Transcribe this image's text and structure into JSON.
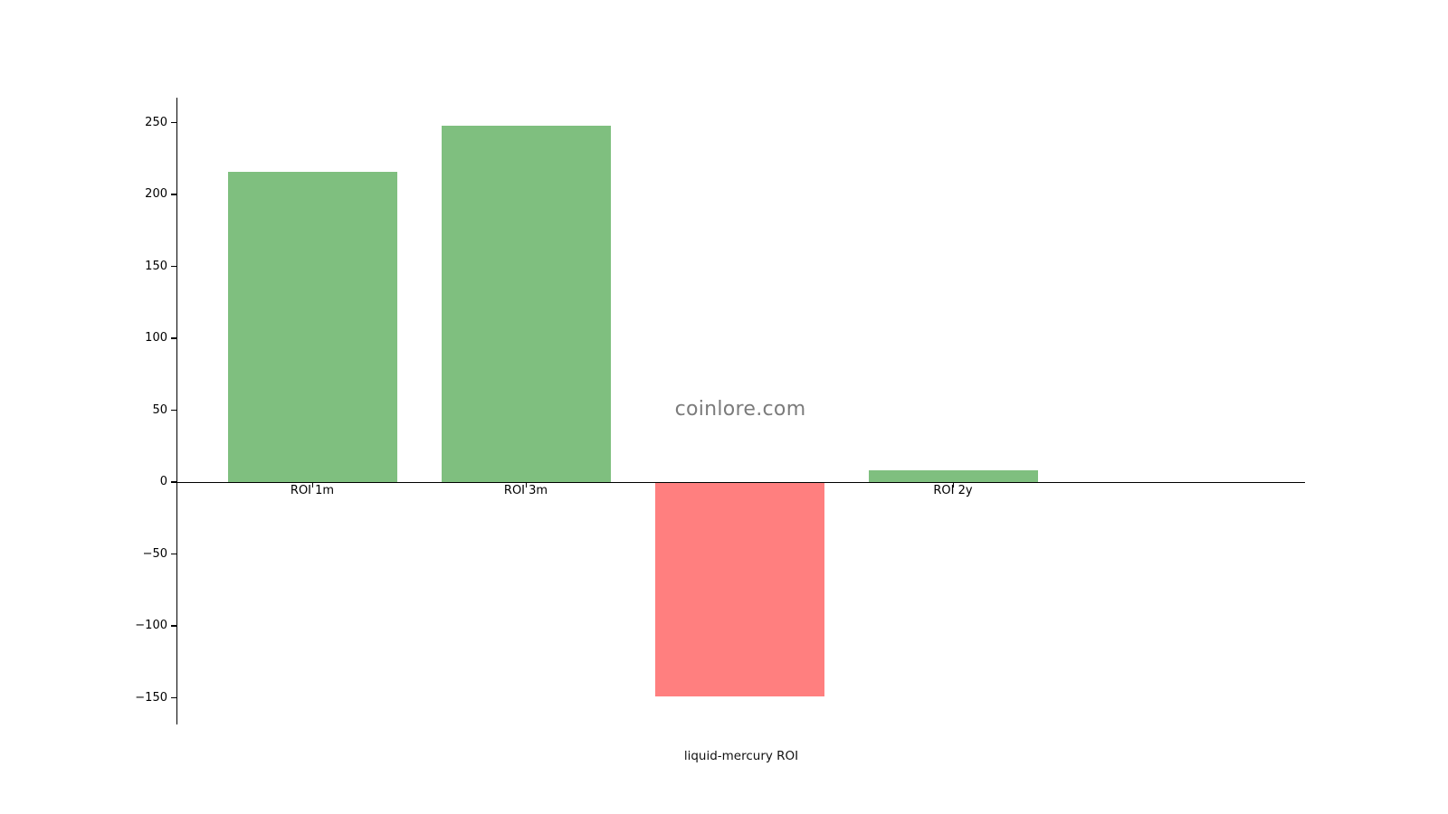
{
  "page": {
    "background_color": "#ffffff"
  },
  "watermark": {
    "text": "coinlore.com",
    "color": "#7b7b7b"
  },
  "chart_data": {
    "type": "bar",
    "title": "liquid-mercury ROI",
    "title_color": "#111111",
    "categories": [
      "ROI 1m",
      "ROI 3m",
      "",
      "ROI 2y"
    ],
    "values": [
      216,
      248,
      -149,
      8
    ],
    "bar_colors": [
      "#7fbf7f",
      "#7fbf7f",
      "#ff7f7f",
      "#7fbf7f"
    ],
    "positive_color": "#7fbf7f",
    "negative_color": "#ff7f7f",
    "axis_color": "#000000",
    "tick_label_color": "#000000",
    "yticks": [
      250,
      200,
      150,
      100,
      50,
      0,
      -50,
      -100,
      -150
    ],
    "ytick_labels": [
      "250",
      "200",
      "150",
      "100",
      "50",
      "0",
      "−50",
      "−100",
      "−150"
    ],
    "ylim": [
      -168,
      267
    ],
    "xlabel": "",
    "ylabel": "",
    "grid": false,
    "legend": "none",
    "notes": "third bar is negative and drawn over its x tick and tick label, hiding them"
  }
}
